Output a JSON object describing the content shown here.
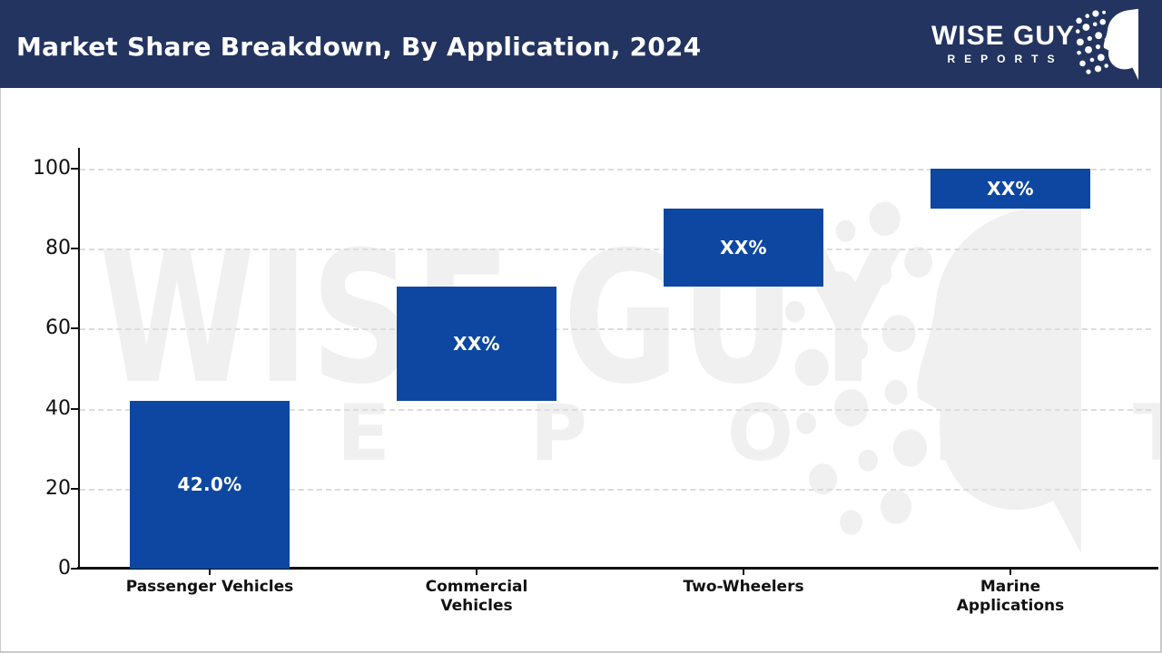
{
  "header": {
    "title": "Market Share Breakdown, By Application, 2024",
    "logo": {
      "wordmark": "WISE GUY",
      "subtext": "REPORTS"
    }
  },
  "watermark": {
    "line1": "WISE GUY",
    "line2": "R E P O R T S"
  },
  "chart_data": {
    "type": "bar",
    "variant": "floating-segment-waterfall",
    "title": "Market Share Breakdown, By Application, 2024",
    "categories": [
      "Passenger Vehicles",
      "Commercial Vehicles",
      "Two-Wheelers",
      "Marine Applications"
    ],
    "category_lines": [
      [
        "Passenger Vehicles"
      ],
      [
        "Commercial",
        "Vehicles"
      ],
      [
        "Two-Wheelers"
      ],
      [
        "Marine",
        "Applications"
      ]
    ],
    "segments": [
      {
        "category": "Passenger Vehicles",
        "start": 0,
        "end": 42,
        "label": "42.0%"
      },
      {
        "category": "Commercial Vehicles",
        "start": 42,
        "end": 70.5,
        "label": "XX%"
      },
      {
        "category": "Two-Wheelers",
        "start": 70.5,
        "end": 90,
        "label": "XX%"
      },
      {
        "category": "Marine Applications",
        "start": 90,
        "end": 100,
        "label": "XX%"
      }
    ],
    "yticks": [
      0,
      20,
      40,
      60,
      80,
      100
    ],
    "ylim": [
      0,
      105
    ],
    "xlabel": "",
    "ylabel": "",
    "grid": "dashed-horizontal",
    "legend": "none",
    "bar_color": "#0d47a1",
    "bar_label_color": "#ffffff"
  },
  "colors": {
    "header_bg": "#22345f",
    "bar": "#0d47a1",
    "grid": "#dcdcdc",
    "axis": "#111111",
    "watermark": "#f0f0f0",
    "border": "#c9c9c9"
  }
}
